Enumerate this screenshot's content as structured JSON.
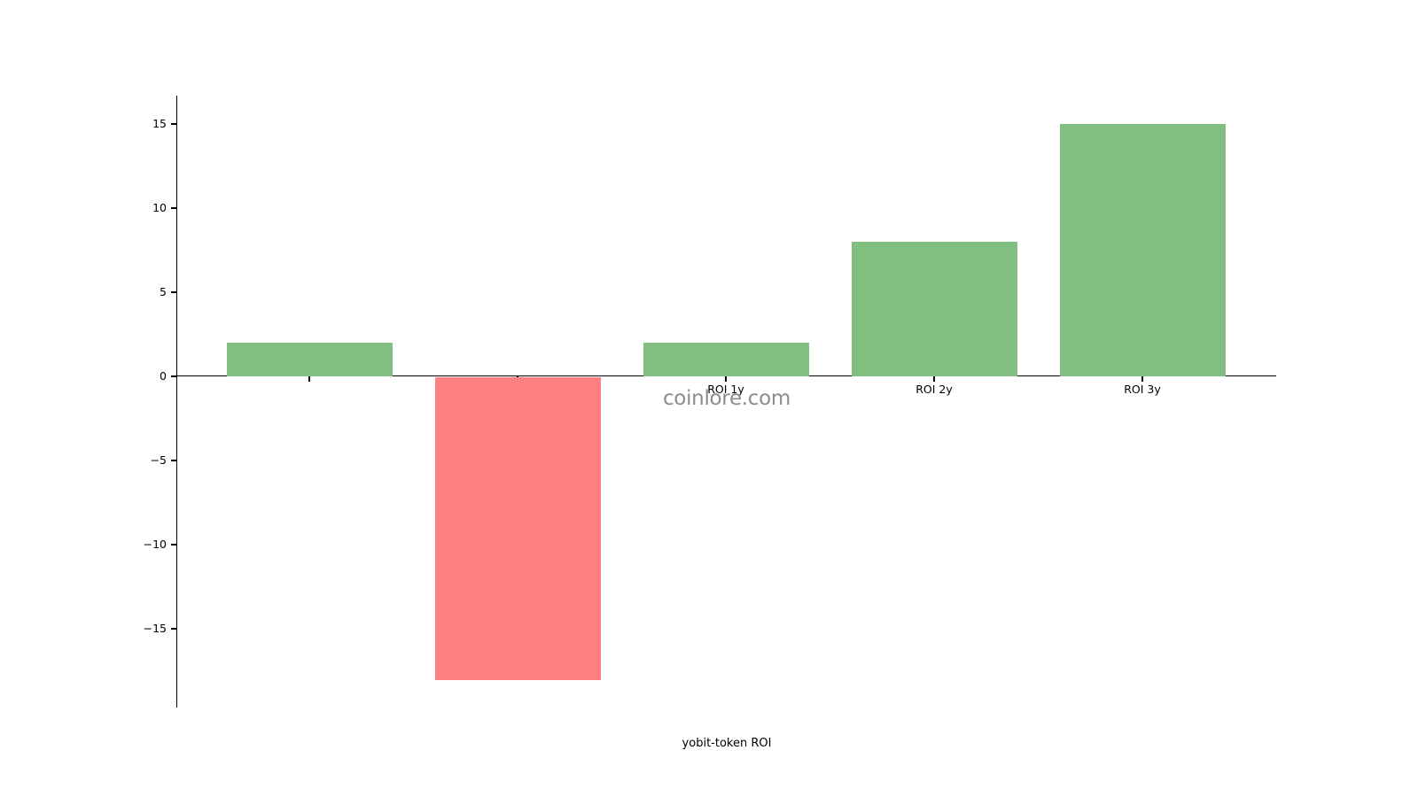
{
  "page": {
    "background_color": "#ffffff"
  },
  "watermark": {
    "text": "coinlore.com",
    "color": "#8c8c8c"
  },
  "chart_data": {
    "type": "bar",
    "title": "yobit-token ROI",
    "categories": [
      "",
      "",
      "ROI 1y",
      "ROI 2y",
      "ROI 3y"
    ],
    "values": [
      2,
      -18,
      2,
      8,
      15
    ],
    "bar_colors": [
      "#80bf80",
      "#ff8080",
      "#80bf80",
      "#80bf80",
      "#80bf80"
    ],
    "positive_color": "#80bf80",
    "negative_color": "#ff8080",
    "ytick_values": [
      15,
      10,
      5,
      0,
      -5,
      -10,
      -15
    ],
    "ytick_labels": [
      "15",
      "10",
      "5",
      "0",
      "−5",
      "−10",
      "−15"
    ],
    "ylim": [
      -19.65,
      16.65
    ],
    "xlabel": "",
    "ylabel": "",
    "grid": false,
    "legend_position": "none",
    "axis_color": "#000000",
    "tick_label_color": "#000000"
  }
}
